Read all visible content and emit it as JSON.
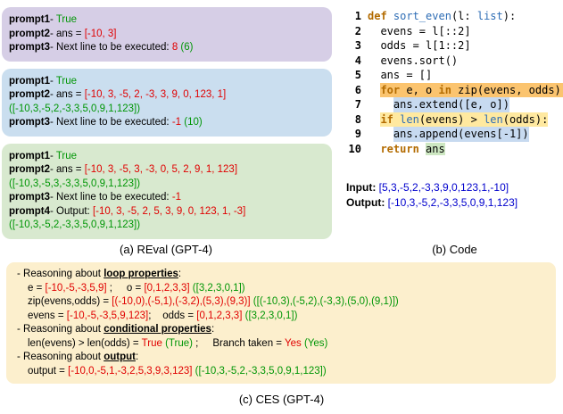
{
  "colors": {
    "correct_green": "#009606",
    "prediction_red": "#e00000",
    "io_blue": "#0000cd",
    "box_purple": "#d6cee6",
    "box_blue": "#cadeef",
    "box_green": "#d8e9cf",
    "ces_bg": "#fcefcd",
    "hl_orange": "#fbc46f",
    "hl_blue": "#c7daf0",
    "hl_yellow": "#ffe9a0",
    "hl_green": "#cde7c2",
    "keyword_orange": "#b36b00",
    "name_blue": "#2e6db5"
  },
  "panel_a": {
    "caption": "(a) REval (GPT-4)",
    "boxes": [
      {
        "bg": "#d6cee6",
        "lines": [
          [
            {
              "t": "prompt1",
              "s": "b"
            },
            {
              "t": "- ",
              "s": "p"
            },
            {
              "t": "True",
              "s": "g"
            }
          ],
          [
            {
              "t": "prompt2",
              "s": "b"
            },
            {
              "t": "- ans = ",
              "s": "p"
            },
            {
              "t": "[-10, 3]",
              "s": "r"
            }
          ],
          [
            {
              "t": "prompt3",
              "s": "b"
            },
            {
              "t": "- Next line to be executed: ",
              "s": "p"
            },
            {
              "t": "8",
              "s": "r"
            },
            {
              "t": " ",
              "s": "p"
            },
            {
              "t": "(6)",
              "s": "g"
            }
          ]
        ]
      },
      {
        "bg": "#cadeef",
        "lines": [
          [
            {
              "t": "prompt1",
              "s": "b"
            },
            {
              "t": "- ",
              "s": "p"
            },
            {
              "t": "True",
              "s": "g"
            }
          ],
          [
            {
              "t": "prompt2",
              "s": "b"
            },
            {
              "t": "- ans = ",
              "s": "p"
            },
            {
              "t": "[-10, 3, -5, 2, -3, 3, 9, 0, 123, 1]",
              "s": "r"
            }
          ],
          [
            {
              "t": "([-10,3,-5,2,-3,3,5,0,9,1,123])",
              "s": "g"
            }
          ],
          [
            {
              "t": "prompt3",
              "s": "b"
            },
            {
              "t": "- Next line to be executed: ",
              "s": "p"
            },
            {
              "t": "-1",
              "s": "r"
            },
            {
              "t": " ",
              "s": "p"
            },
            {
              "t": "(10)",
              "s": "g"
            }
          ]
        ]
      },
      {
        "bg": "#d8e9cf",
        "lines": [
          [
            {
              "t": "prompt1",
              "s": "b"
            },
            {
              "t": "- ",
              "s": "p"
            },
            {
              "t": "True",
              "s": "g"
            }
          ],
          [
            {
              "t": "prompt2",
              "s": "b"
            },
            {
              "t": "- ans = ",
              "s": "p"
            },
            {
              "t": "[-10, 3, -5, 3, -3, 0, 5, 2, 9, 1, 123]",
              "s": "r"
            }
          ],
          [
            {
              "t": "([-10,3,-5,3,-3,3,5,0,9,1,123])",
              "s": "g"
            }
          ],
          [
            {
              "t": "prompt3",
              "s": "b"
            },
            {
              "t": "- Next line to be executed: ",
              "s": "p"
            },
            {
              "t": "-1",
              "s": "r"
            }
          ],
          [
            {
              "t": "prompt4",
              "s": "b"
            },
            {
              "t": "- Output: ",
              "s": "p"
            },
            {
              "t": "[-10, 3, -5, 2, 5, 3, 9, 0, 123, 1, -3]",
              "s": "r"
            }
          ],
          [
            {
              "t": "([-10,3,-5,2,-3,3,5,0,9,1,123])",
              "s": "g"
            }
          ]
        ]
      }
    ]
  },
  "panel_b": {
    "caption": "(b) Code",
    "code": [
      {
        "n": "1",
        "ind": "",
        "hl": "",
        "segs": [
          {
            "t": "def ",
            "s": "kw"
          },
          {
            "t": "sort_even",
            "s": "fn"
          },
          {
            "t": "(l: ",
            "s": "p"
          },
          {
            "t": "list",
            "s": "fn"
          },
          {
            "t": "):",
            "s": "p"
          }
        ]
      },
      {
        "n": "2",
        "ind": "  ",
        "hl": "",
        "segs": [
          {
            "t": "evens = l[::2]",
            "s": "p"
          }
        ]
      },
      {
        "n": "3",
        "ind": "  ",
        "hl": "",
        "segs": [
          {
            "t": "odds = l[1::2]",
            "s": "p"
          }
        ]
      },
      {
        "n": "4",
        "ind": "  ",
        "hl": "",
        "segs": [
          {
            "t": "evens.sort()",
            "s": "p"
          }
        ]
      },
      {
        "n": "5",
        "ind": "  ",
        "hl": "",
        "segs": [
          {
            "t": "ans = []",
            "s": "p"
          }
        ]
      },
      {
        "n": "6",
        "ind": "  ",
        "hl": "o",
        "segs": [
          {
            "t": "for",
            "s": "kw"
          },
          {
            "t": " e, o ",
            "s": "p"
          },
          {
            "t": "in",
            "s": "kw"
          },
          {
            "t": " zip(evens, odds):",
            "s": "p"
          }
        ]
      },
      {
        "n": "7",
        "ind": "    ",
        "hl": "b",
        "segs": [
          {
            "t": "ans.extend([e, o])",
            "s": "p"
          }
        ]
      },
      {
        "n": "8",
        "ind": "  ",
        "hl": "y",
        "segs": [
          {
            "t": "if",
            "s": "kw"
          },
          {
            "t": " ",
            "s": "p"
          },
          {
            "t": "len",
            "s": "fn"
          },
          {
            "t": "(evens) > ",
            "s": "p"
          },
          {
            "t": "len",
            "s": "fn"
          },
          {
            "t": "(odds):",
            "s": "p"
          }
        ]
      },
      {
        "n": "9",
        "ind": "    ",
        "hl": "b",
        "segs": [
          {
            "t": "ans.append(evens[-1])",
            "s": "p"
          }
        ]
      },
      {
        "n": "10",
        "ind": "  ",
        "hl": "",
        "segs": [
          {
            "t": "return",
            "s": "kw"
          },
          {
            "t": " ",
            "s": "p"
          },
          {
            "t": "ans",
            "s": "hg"
          }
        ]
      }
    ],
    "io": [
      {
        "segs": [
          {
            "t": "Input:",
            "s": "b"
          },
          {
            "t": " ",
            "s": "p"
          },
          {
            "t": "[5,3,-5,2,-3,3,9,0,123,1,-10]",
            "s": "bl"
          }
        ]
      },
      {
        "segs": [
          {
            "t": "Output:",
            "s": "b"
          },
          {
            "t": " ",
            "s": "p"
          },
          {
            "t": "[-10,3,-5,2,-3,3,5,0,9,1,123]",
            "s": "bl"
          }
        ]
      }
    ]
  },
  "panel_c": {
    "caption": "(c) CES (GPT-4)",
    "lines": [
      {
        "ind": 0,
        "segs": [
          {
            "t": "- Reasoning about ",
            "s": "p"
          },
          {
            "t": "loop properties",
            "s": "bu"
          },
          {
            "t": ":",
            "s": "p"
          }
        ]
      },
      {
        "ind": 1,
        "segs": [
          {
            "t": "e = ",
            "s": "p"
          },
          {
            "t": "[-10,-5,-3,5,9]",
            "s": "r"
          },
          {
            "t": " ;     o = ",
            "s": "p"
          },
          {
            "t": "[0,1,2,3,3]",
            "s": "r"
          },
          {
            "t": " ",
            "s": "p"
          },
          {
            "t": "([3,2,3,0,1])",
            "s": "g"
          }
        ]
      },
      {
        "ind": 1,
        "segs": [
          {
            "t": "zip(evens,odds) = ",
            "s": "p"
          },
          {
            "t": "[(-10,0),(-5,1),(-3,2),(5,3),(9,3)]",
            "s": "r"
          },
          {
            "t": " ",
            "s": "p"
          },
          {
            "t": "([(-10,3),(-5,2),(-3,3),(5,0),(9,1)])",
            "s": "g"
          }
        ]
      },
      {
        "ind": 1,
        "segs": [
          {
            "t": "evens = ",
            "s": "p"
          },
          {
            "t": "[-10,-5,-3,5,9,123]",
            "s": "r"
          },
          {
            "t": ";    odds = ",
            "s": "p"
          },
          {
            "t": "[0,1,2,3,3]",
            "s": "r"
          },
          {
            "t": " ",
            "s": "p"
          },
          {
            "t": "([3,2,3,0,1])",
            "s": "g"
          }
        ]
      },
      {
        "ind": 0,
        "segs": [
          {
            "t": "- Reasoning about ",
            "s": "p"
          },
          {
            "t": "conditional properties",
            "s": "bu"
          },
          {
            "t": ":",
            "s": "p"
          }
        ]
      },
      {
        "ind": 1,
        "segs": [
          {
            "t": "len(evens) > len(odds) = ",
            "s": "p"
          },
          {
            "t": "True",
            "s": "r"
          },
          {
            "t": " ",
            "s": "p"
          },
          {
            "t": "(True)",
            "s": "g"
          },
          {
            "t": " ;     Branch taken = ",
            "s": "p"
          },
          {
            "t": "Yes",
            "s": "r"
          },
          {
            "t": " ",
            "s": "p"
          },
          {
            "t": "(Yes)",
            "s": "g"
          }
        ]
      },
      {
        "ind": 0,
        "segs": [
          {
            "t": "- Reasoning about ",
            "s": "p"
          },
          {
            "t": "output",
            "s": "bu"
          },
          {
            "t": ":",
            "s": "p"
          }
        ]
      },
      {
        "ind": 1,
        "segs": [
          {
            "t": "output = ",
            "s": "p"
          },
          {
            "t": "[-10,0,-5,1,-3,2,5,3,9,3,123]",
            "s": "r"
          },
          {
            "t": " ",
            "s": "p"
          },
          {
            "t": "([-10,3,-5,2,-3,3,5,0,9,1,123])",
            "s": "g"
          }
        ]
      }
    ]
  }
}
